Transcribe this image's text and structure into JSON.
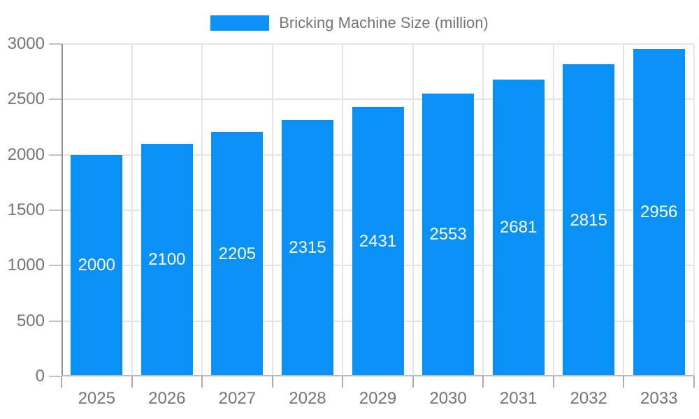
{
  "chart_data": {
    "type": "bar",
    "title": "Bricking Machine Size (million)",
    "legend": [
      "Bricking Machine Size (million)"
    ],
    "legend_position": "top-center",
    "categories": [
      "2025",
      "2026",
      "2027",
      "2028",
      "2029",
      "2030",
      "2031",
      "2032",
      "2033"
    ],
    "series": [
      {
        "name": "Bricking Machine Size (million)",
        "values": [
          2000,
          2100,
          2205,
          2315,
          2431,
          2553,
          2681,
          2815,
          2956
        ]
      }
    ],
    "xlabel": "",
    "ylabel": "",
    "ylim": [
      0,
      3000
    ],
    "yticks": [
      0,
      500,
      1000,
      1500,
      2000,
      2500,
      3000
    ],
    "grid": true,
    "bar_labels_visible": true,
    "colors": {
      "bar": "#0a91f5",
      "bar_label_text": "#ffffff",
      "axis_text": "#757575",
      "gridline": "#e5e5e5",
      "background": "#ffffff"
    }
  }
}
